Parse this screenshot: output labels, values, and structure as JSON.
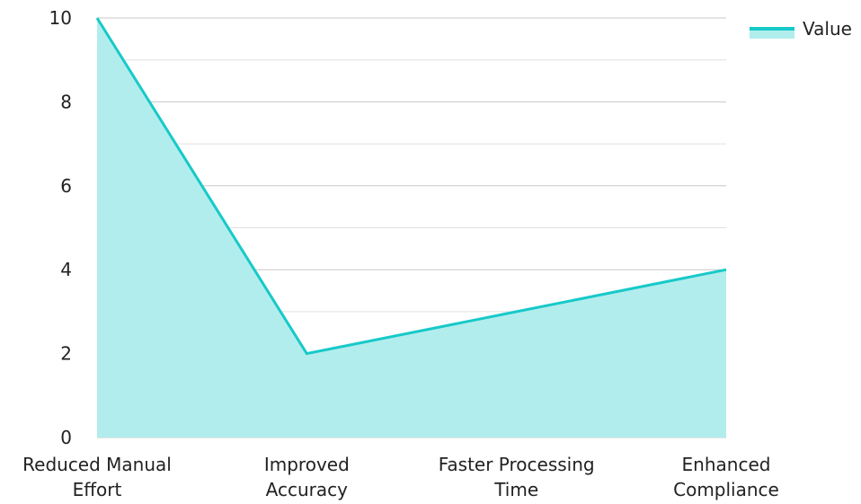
{
  "chart_data": {
    "type": "area",
    "categories": [
      "Reduced Manual Effort",
      "Improved Accuracy",
      "Faster Processing Time",
      "Enhanced Compliance"
    ],
    "category_lines": [
      [
        "Reduced Manual",
        "Effort"
      ],
      [
        "Improved",
        "Accuracy"
      ],
      [
        "Faster Processing",
        "Time"
      ],
      [
        "Enhanced",
        "Compliance"
      ]
    ],
    "series": [
      {
        "name": "Value",
        "values": [
          10,
          2,
          3,
          4
        ]
      }
    ],
    "ylim": [
      0,
      10
    ],
    "yticks": [
      0,
      2,
      4,
      6,
      8,
      10
    ],
    "minor_yticks": [
      1,
      3,
      5,
      7,
      9
    ],
    "grid": true,
    "legend_position": "top-right",
    "colors": {
      "line": "#17c9c9",
      "fill": "#b2eded"
    }
  }
}
